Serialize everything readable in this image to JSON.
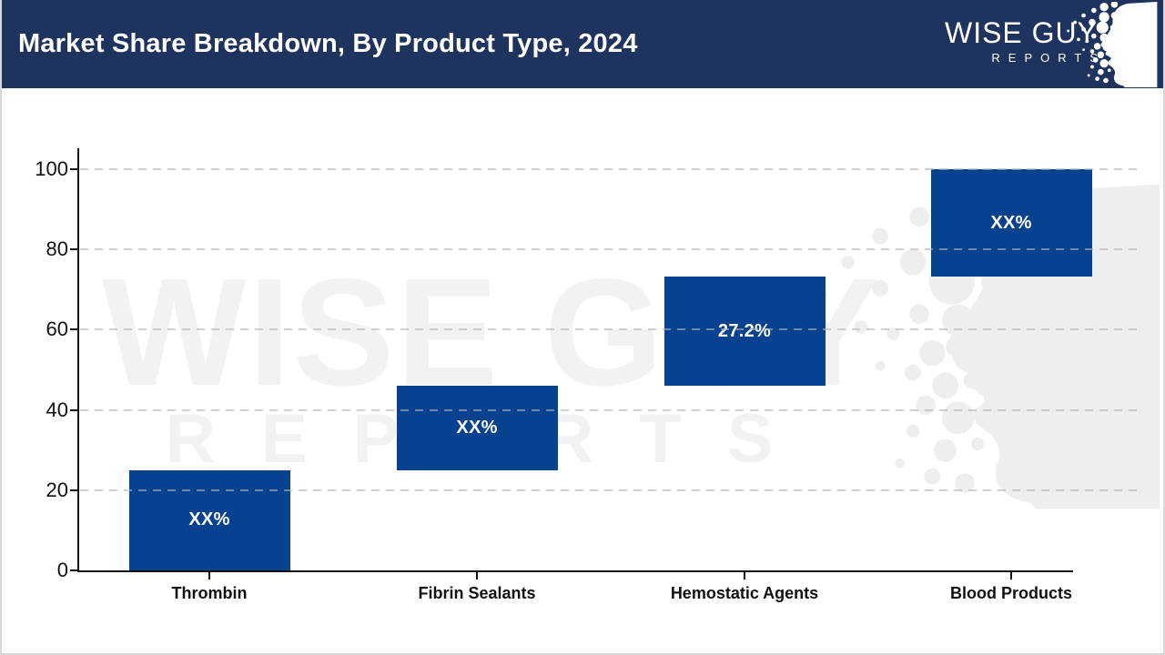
{
  "header": {
    "title": "Market Share Breakdown, By Product Type, 2024",
    "logo": {
      "line1": "WISE GUY",
      "line2": "REPORTS"
    }
  },
  "watermark": {
    "line1": "WISE GUY",
    "line2": "REPORTS"
  },
  "colors": {
    "header_bg": "#1e335d",
    "bar": "#064290",
    "grid": "#d8d8d8",
    "axis": "#111111",
    "bar_label_text": "#ffffff",
    "watermark": "#f2f2f2",
    "watermark_face": "#eeeeee",
    "logo_face": "#ffffff"
  },
  "chart_data": {
    "type": "bar",
    "subtype": "waterfall",
    "title": "Market Share Breakdown, By Product Type, 2024",
    "categories": [
      "Thrombin",
      "Fibrin Sealants",
      "Hemostatic Agents",
      "Blood Products"
    ],
    "segments": [
      {
        "category": "Thrombin",
        "start": 0,
        "end": 25,
        "value_label": "XX%"
      },
      {
        "category": "Fibrin Sealants",
        "start": 25,
        "end": 46,
        "value_label": "XX%"
      },
      {
        "category": "Hemostatic Agents",
        "start": 46,
        "end": 73.2,
        "value_label": "27.2%"
      },
      {
        "category": "Blood Products",
        "start": 73.2,
        "end": 100,
        "value_label": "XX%"
      }
    ],
    "y_ticks": [
      0,
      20,
      40,
      60,
      80,
      100
    ],
    "ylim": [
      0,
      105
    ],
    "grid": "horizontal-dashed",
    "legend": "none"
  }
}
